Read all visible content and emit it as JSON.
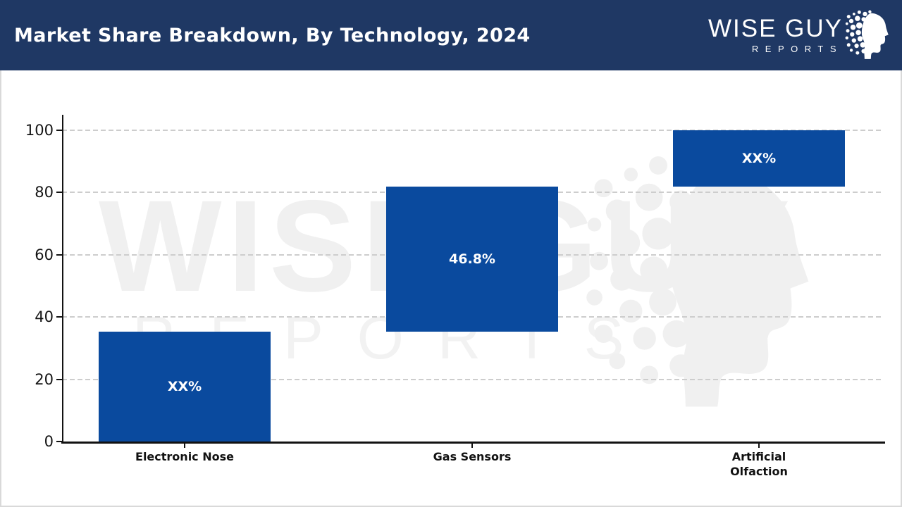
{
  "header": {
    "title": "Market Share Breakdown, By Technology, 2024",
    "logo": {
      "top": "WISE GUY",
      "bottom": "REPORTS"
    }
  },
  "watermark": {
    "top": "WISE GUY",
    "bottom": "REPORTS"
  },
  "colors": {
    "header_bg": "#1f3864",
    "bar": "#0a4a9e",
    "grid": "#cdcdcd",
    "axis": "#121212",
    "watermark": "#f0f0f0",
    "bar_label": "#ffffff"
  },
  "chart_data": {
    "type": "bar",
    "variant": "floating-segment-waterfall",
    "title": "Market Share Breakdown, By Technology, 2024",
    "categories": [
      "Electronic Nose",
      "Gas Sensors",
      "Artificial\nOlfaction"
    ],
    "segments": [
      {
        "name": "Electronic Nose",
        "start": 0,
        "end": 35.2,
        "value": 35.2,
        "label": "XX%"
      },
      {
        "name": "Gas Sensors",
        "start": 35.2,
        "end": 82,
        "value": 46.8,
        "label": "46.8%"
      },
      {
        "name": "Artificial Olfaction",
        "start": 82,
        "end": 100,
        "value": 18,
        "label": "XX%"
      }
    ],
    "yticks": [
      0,
      20,
      40,
      60,
      80,
      100
    ],
    "ylim": [
      0,
      105
    ],
    "xlabel": "",
    "ylabel": "",
    "grid": "horizontal-dashed",
    "legend": "none",
    "bar_color": "#0a4a9e",
    "label_color": "#ffffff"
  }
}
